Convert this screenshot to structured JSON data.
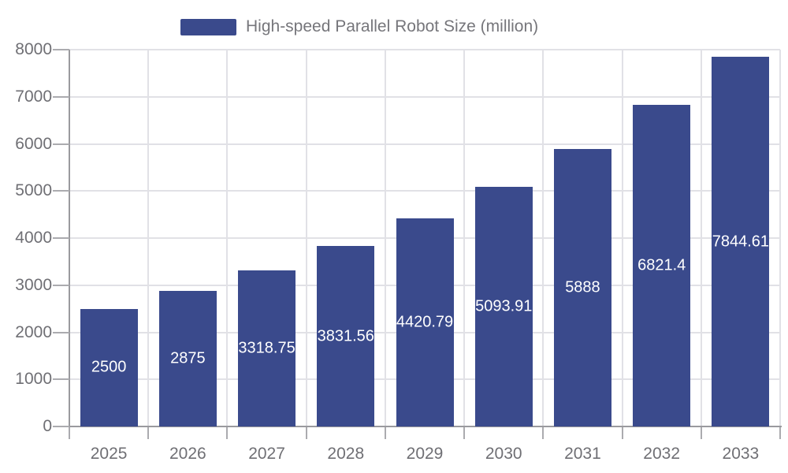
{
  "legend": {
    "items": [
      {
        "label": "High-speed Parallel Robot Size (million)",
        "swatch_color": "#3A4A8C"
      }
    ]
  },
  "chart_data": {
    "type": "bar",
    "title": "",
    "categories": [
      "2025",
      "2026",
      "2027",
      "2028",
      "2029",
      "2030",
      "2031",
      "2032",
      "2033"
    ],
    "series": [
      {
        "name": "High-speed Parallel Robot Size (million)",
        "values": [
          2500,
          2875,
          3318.75,
          3831.56,
          4420.79,
          5093.91,
          5888,
          6821.4,
          7844.61
        ],
        "labels": [
          "2500",
          "2875",
          "3318.75",
          "3831.56",
          "4420.79",
          "5093.91",
          "5888",
          "6821.4",
          "7844.61"
        ],
        "color": "#3A4A8C"
      }
    ],
    "xlabel": "",
    "ylabel": "",
    "ylim": [
      0,
      8000
    ],
    "ytick_interval": 1000,
    "yticks": [
      "0",
      "1000",
      "2000",
      "3000",
      "4000",
      "5000",
      "6000",
      "7000",
      "8000"
    ],
    "grid": true,
    "legend_position": "top-center",
    "bar_label_position": "inside-center",
    "bar_label_color": "#FFFFFF",
    "colors": {
      "bar": "#3A4A8C",
      "background": "#FFFFFF",
      "grid_line": "#E1E1E6",
      "axis_line": "#9A9A9E",
      "tick": "#ABABAF",
      "axis_label": "#6F6F74",
      "legend_text": "#76767B"
    }
  }
}
